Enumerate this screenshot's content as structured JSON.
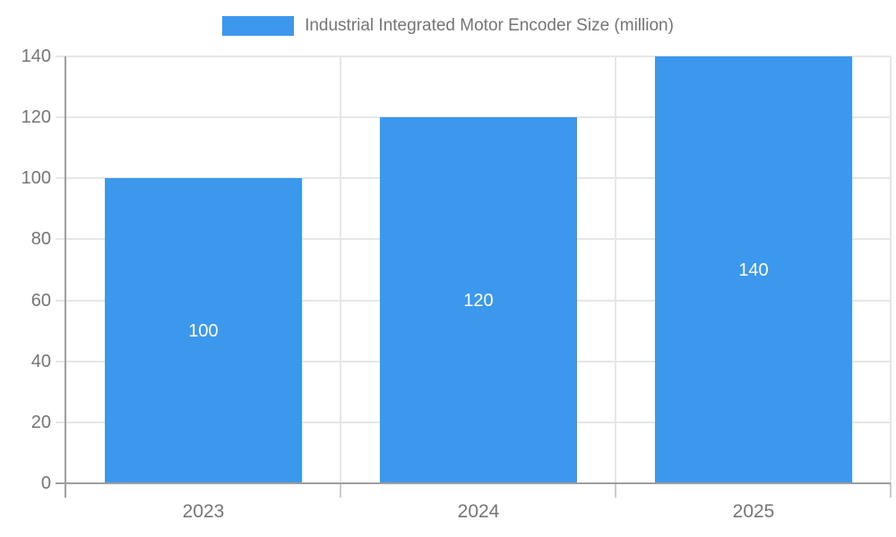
{
  "legend": {
    "label": "Industrial Integrated Motor Encoder Size (million)"
  },
  "colors": {
    "bar": "#3b98ec",
    "axis": "#9e9e9e",
    "grid": "#e6e6e6",
    "tick": "#cccccc",
    "label_text": "#757575",
    "bar_label_text": "#ffffff"
  },
  "chart_data": {
    "type": "bar",
    "title": "Industrial Integrated Motor Encoder Size (million)",
    "categories": [
      "2023",
      "2024",
      "2025"
    ],
    "values": [
      100,
      120,
      140
    ],
    "bar_labels": [
      "100",
      "120",
      "140"
    ],
    "xlabel": "",
    "ylabel": "",
    "y_ticks": [
      0,
      20,
      40,
      60,
      80,
      100,
      120,
      140
    ],
    "ylim": [
      0,
      140
    ],
    "grid": true,
    "legend_position": "top"
  }
}
